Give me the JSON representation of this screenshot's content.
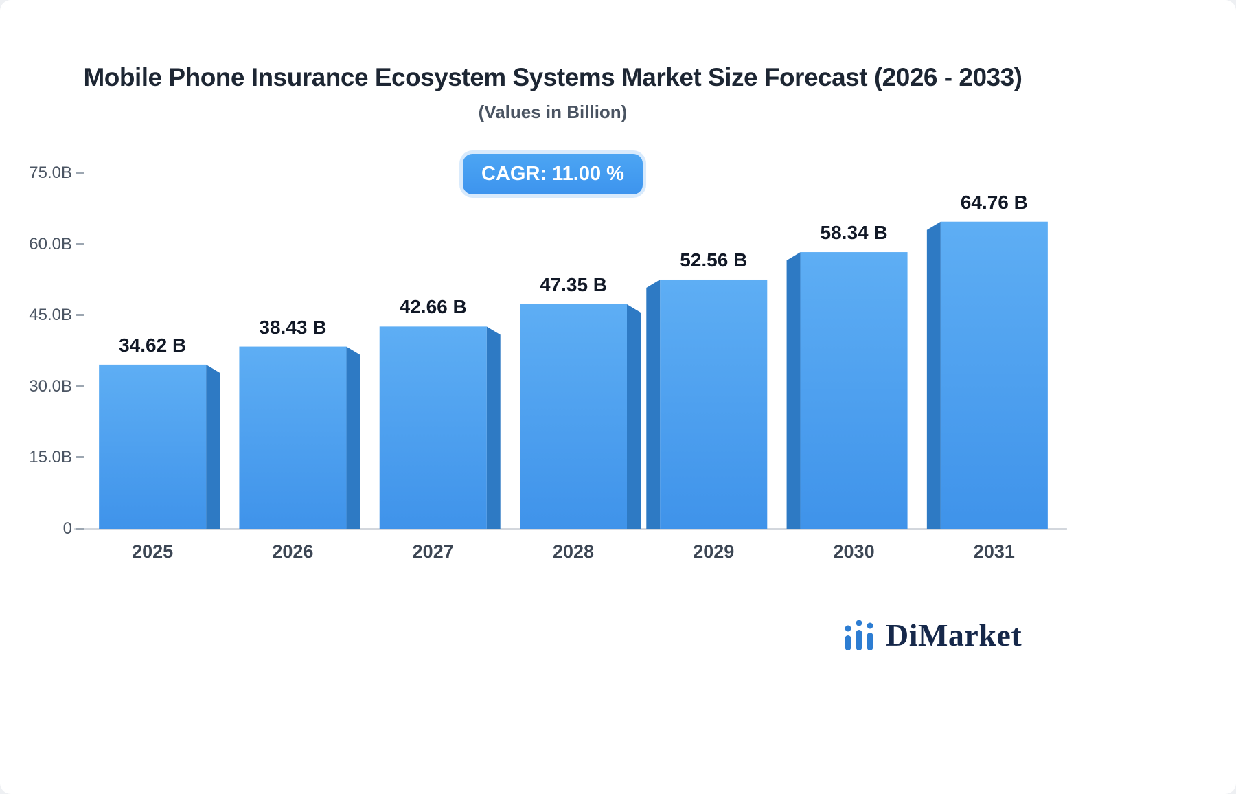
{
  "header": {
    "title": "Mobile Phone Insurance Ecosystem Systems Market Size Forecast (2026 - 2033)",
    "subtitle": "(Values in Billion)",
    "cagr_badge": "CAGR: 11.00 %"
  },
  "logo": {
    "text": "DiMarket",
    "icon": "bar-chart-icon",
    "icon_color": "#2D7DD2",
    "text_color": "#16284a"
  },
  "colors": {
    "bar_front_top": "#5EAEF4",
    "bar_front_bottom": "#3F93EA",
    "bar_side": "#2E7AC4",
    "badge_blue": "#42A0F0",
    "axis_line": "#d3d7dd",
    "tick": "#9ca6b1",
    "label_dark": "#111826",
    "label_gray": "#4b5563"
  },
  "chart_data": {
    "type": "bar",
    "title": "Mobile Phone Insurance Ecosystem Systems Market Size Forecast (2026 - 2033)",
    "subtitle": "(Values in Billion)",
    "xlabel": "",
    "ylabel": "",
    "categories": [
      "2025",
      "2026",
      "2027",
      "2028",
      "2029",
      "2030",
      "2031"
    ],
    "values": [
      34.62,
      38.43,
      42.66,
      47.35,
      52.56,
      58.34,
      64.76
    ],
    "value_labels": [
      "34.62 B",
      "38.43 B",
      "42.66 B",
      "47.35 B",
      "52.56 B",
      "58.34 B",
      "64.76 B"
    ],
    "ylim": [
      0,
      75
    ],
    "yticks": [
      {
        "value": 0,
        "label": "0"
      },
      {
        "value": 15,
        "label": "15.0B"
      },
      {
        "value": 30,
        "label": "30.0B"
      },
      {
        "value": 45,
        "label": "45.0B"
      },
      {
        "value": 60,
        "label": "60.0B"
      },
      {
        "value": 75,
        "label": "75.0B"
      }
    ],
    "grid": false,
    "legend": false,
    "annotations": [
      "CAGR: 11.00 %"
    ]
  }
}
